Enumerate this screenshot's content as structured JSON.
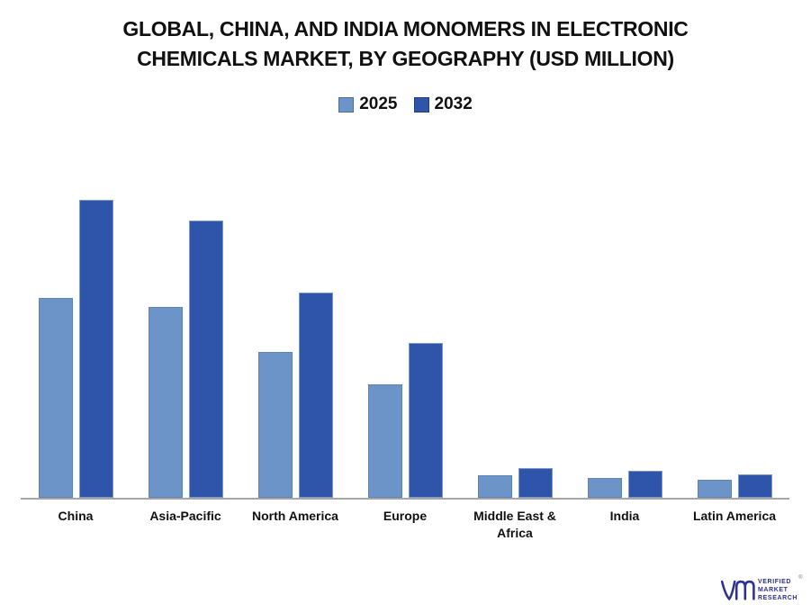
{
  "header": {
    "title_line1": "GLOBAL, CHINA, AND INDIA MONOMERS IN ELECTRONIC",
    "title_line2": "CHEMICALS MARKET, BY GEOGRAPHY (USD MILLION)"
  },
  "chart_data": {
    "type": "bar",
    "title": "GLOBAL, CHINA, AND INDIA MONOMERS IN ELECTRONIC CHEMICALS MARKET, BY GEOGRAPHY (USD MILLION)",
    "categories": [
      "China",
      "Asia-Pacific",
      "North America",
      "Europe",
      "Middle East & Africa",
      "India",
      "Latin America"
    ],
    "series": [
      {
        "name": "2025",
        "color": "#6C94C9",
        "border_color": "#5d84ba",
        "values": [
          67,
          64,
          49,
          38,
          7.5,
          6.5,
          6
        ]
      },
      {
        "name": "2032",
        "color": "#2E55A9",
        "border_color": "#7d9ac7",
        "values": [
          100,
          93,
          69,
          52,
          10,
          9,
          8
        ]
      }
    ],
    "xlabel": "",
    "ylabel": "",
    "ylim": [
      0,
      122
    ],
    "value_axis_visible": false,
    "values_note": "No value axis or data labels shown; values are relative units estimated from bar heights (China 2032 = 100).",
    "grid": false,
    "legend_position": "top",
    "axis_line_color": "#a6a6a6"
  },
  "branding": {
    "lines": [
      "VERIFIED",
      "MARKET",
      "RESEARCH"
    ],
    "registered_mark": "®",
    "color": "#2e3192"
  }
}
